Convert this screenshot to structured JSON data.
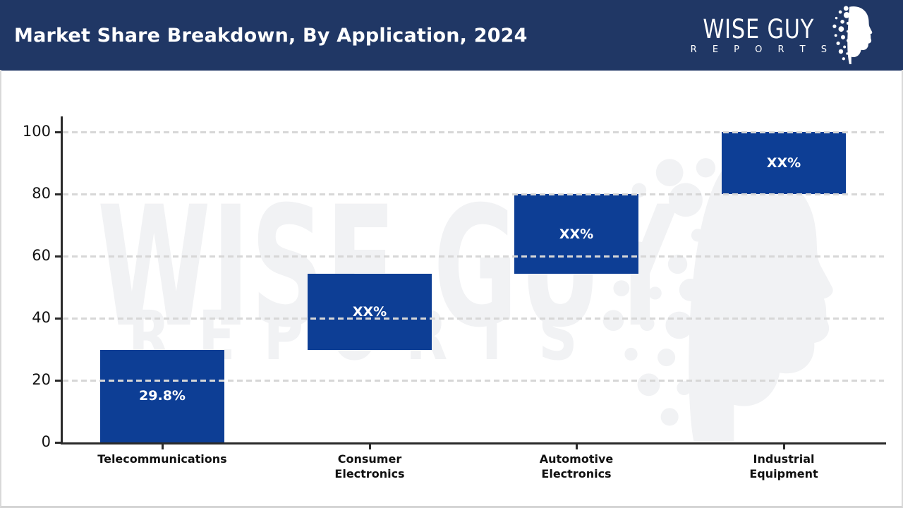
{
  "header": {
    "title": "Market Share Breakdown, By Application, 2024",
    "logo": {
      "brand": "WISE GUY",
      "sub": "R E P O R T S"
    }
  },
  "watermark": {
    "brand": "WISE GUY",
    "sub": "REPORTS"
  },
  "colors": {
    "header_bg": "#203765",
    "bar": "#0d3e95",
    "bar_label": "#ffffff",
    "grid": "#d7d7d7",
    "axis": "#2a2a2a",
    "watermark": "#f1f2f4"
  },
  "chart_data": {
    "type": "bar",
    "subtype": "waterfall-segments",
    "title": "Market Share Breakdown, By Application, 2024",
    "xlabel": "",
    "ylabel": "",
    "ylim": [
      0,
      100
    ],
    "yticks": [
      0,
      20,
      40,
      60,
      80,
      100
    ],
    "grid": "horizontal-dashed",
    "legend_position": "none",
    "categories": [
      "Telecommunications",
      "Consumer Electronics",
      "Automotive Electronics",
      "Industrial Equipment"
    ],
    "segments": [
      {
        "category": "Telecommunications",
        "category_lines": [
          "Telecommunications"
        ],
        "start": 0,
        "end": 29.8,
        "value_label": "29.8%"
      },
      {
        "category": "Consumer Electronics",
        "category_lines": [
          "Consumer",
          "Electronics"
        ],
        "start": 29.8,
        "end": 54.3,
        "value_label": "XX%"
      },
      {
        "category": "Automotive Electronics",
        "category_lines": [
          "Automotive",
          "Electronics"
        ],
        "start": 54.3,
        "end": 80,
        "value_label": "XX%"
      },
      {
        "category": "Industrial Equipment",
        "category_lines": [
          "Industrial",
          "Equipment"
        ],
        "start": 80,
        "end": 100,
        "value_label": "XX%"
      }
    ]
  }
}
